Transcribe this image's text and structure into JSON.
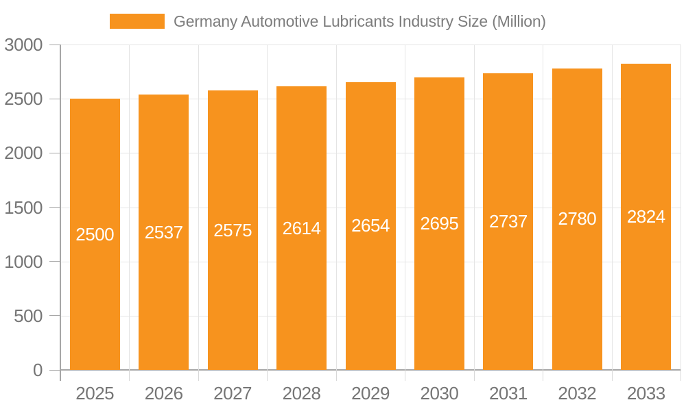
{
  "chart_data": {
    "type": "bar",
    "title": "Germany Automotive Lubricants Industry Size (Million)",
    "categories": [
      "2025",
      "2026",
      "2027",
      "2028",
      "2029",
      "2030",
      "2031",
      "2032",
      "2033"
    ],
    "values": [
      2500,
      2537,
      2575,
      2614,
      2654,
      2695,
      2737,
      2780,
      2824
    ],
    "series": [
      {
        "name": "Germany Automotive Lubricants Industry Size (Million)",
        "values": [
          2500,
          2537,
          2575,
          2614,
          2654,
          2695,
          2737,
          2780,
          2824
        ]
      }
    ],
    "xlabel": "",
    "ylabel": "",
    "ylim": [
      0,
      3000
    ],
    "yticks": [
      0,
      500,
      1000,
      1500,
      2000,
      2500,
      3000
    ],
    "grid": true,
    "legend_position": "top",
    "bar_labels_inside": true,
    "colors": {
      "bar": "#f7931e",
      "bar_label": "#ffffff",
      "grid_line": "#e4e4e4",
      "axis_line": "#a6a6a6",
      "boundary_tick": "#d8d8d8",
      "axis_text": "#757575",
      "title_text": "#7d7d7d",
      "background": "#ffffff"
    }
  }
}
